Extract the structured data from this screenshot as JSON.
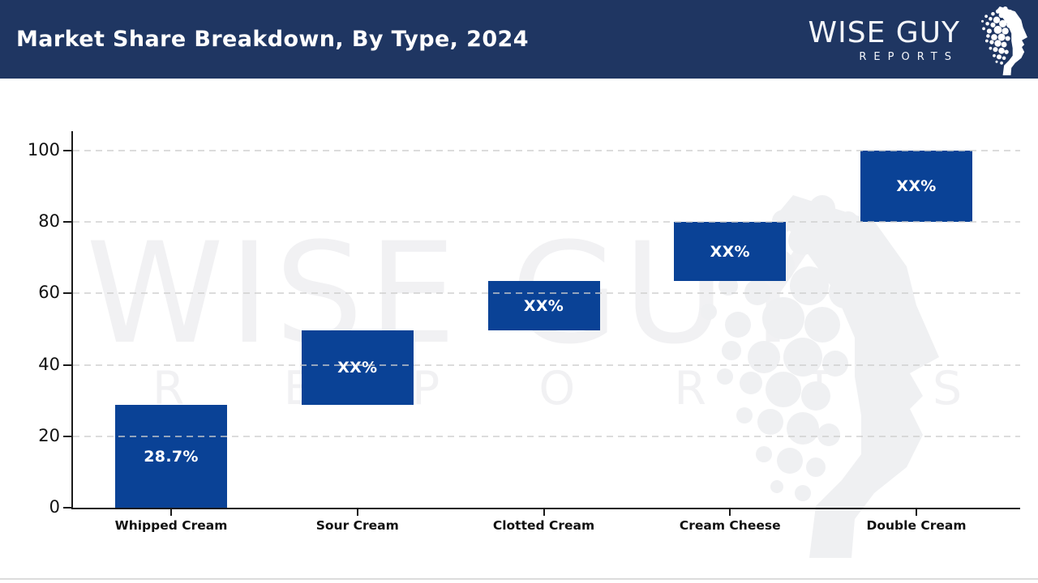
{
  "header": {
    "title": "Market Share Breakdown, By Type, 2024",
    "logo": {
      "line1": "WISE GUY",
      "line2": "REPORTS"
    },
    "bg_color": "#1f3662"
  },
  "watermark": {
    "line1": "WISE GUY",
    "line2": "R E P O R T S"
  },
  "chart_data": {
    "type": "bar",
    "subtype": "waterfall-floating-bars",
    "title": "Market Share Breakdown, By Type, 2024",
    "categories": [
      "Whipped Cream",
      "Sour Cream",
      "Clotted Cream",
      "Cream Cheese",
      "Double Cream"
    ],
    "segments": [
      {
        "category": "Whipped Cream",
        "start": 0,
        "end": 28.7,
        "label": "28.7%"
      },
      {
        "category": "Sour Cream",
        "start": 28.7,
        "end": 49.6,
        "label": "XX%"
      },
      {
        "category": "Clotted Cream",
        "start": 49.6,
        "end": 63.4,
        "label": "XX%"
      },
      {
        "category": "Cream Cheese",
        "start": 63.4,
        "end": 80.0,
        "label": "XX%"
      },
      {
        "category": "Double Cream",
        "start": 80.0,
        "end": 100.0,
        "label": "XX%"
      }
    ],
    "y_ticks": [
      0,
      20,
      40,
      60,
      80,
      100
    ],
    "ylim": [
      0,
      105.4
    ],
    "xlabel": "",
    "ylabel": "",
    "bar_color": "#0a4296",
    "label_color": "#ffffff",
    "grid": true,
    "grid_style": "dashed",
    "grid_color": "#d9d9d9",
    "legend": "none"
  }
}
